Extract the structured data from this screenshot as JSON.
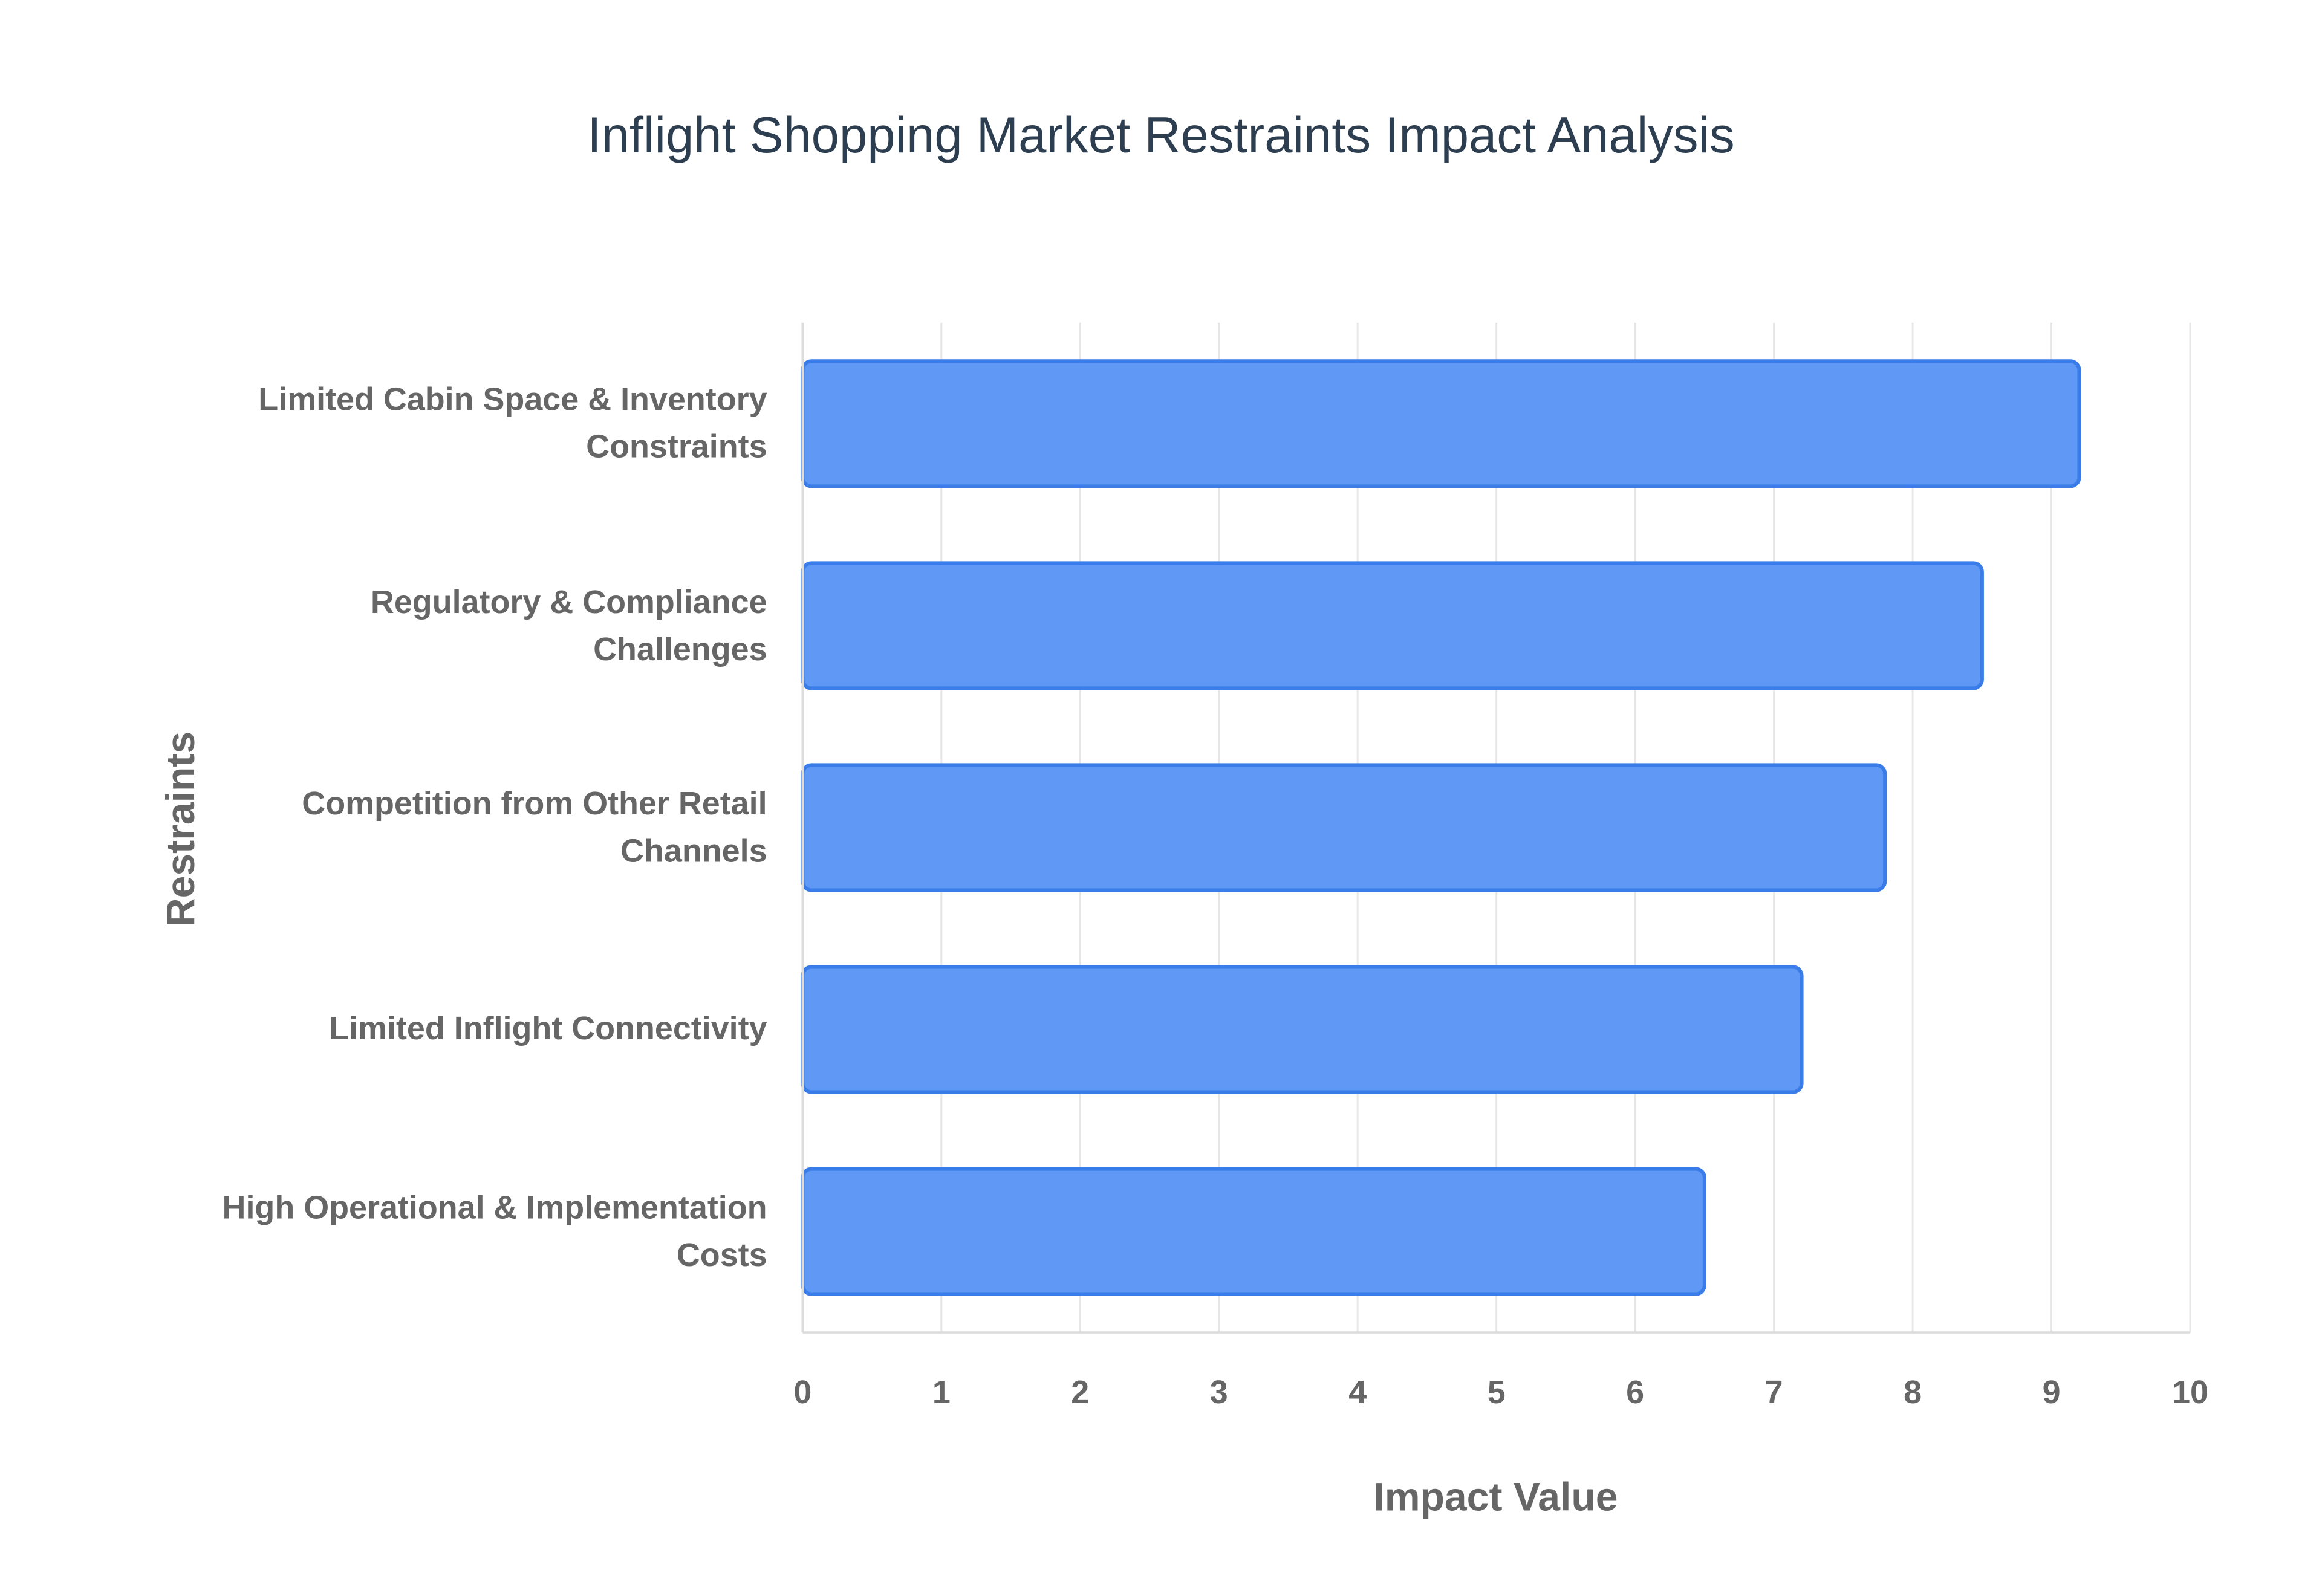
{
  "chart_data": {
    "type": "bar",
    "orientation": "horizontal",
    "title": "Inflight Shopping Market Restraints Impact Analysis",
    "x_label": "Impact Value",
    "y_label": "Restraints",
    "categories": [
      "Limited Cabin Space & Inventory Constraints",
      "Regulatory & Compliance Challenges",
      "Competition from Other Retail Channels",
      "Limited Inflight Connectivity",
      "High Operational & Implementation Costs"
    ],
    "values": [
      9.2,
      8.5,
      7.8,
      7.2,
      6.5
    ],
    "color": "#5f98f5",
    "xlim": [
      0,
      10
    ],
    "xticks": [
      0,
      1,
      2,
      3,
      4,
      5,
      6,
      7,
      8,
      9,
      10
    ],
    "grid": true
  }
}
